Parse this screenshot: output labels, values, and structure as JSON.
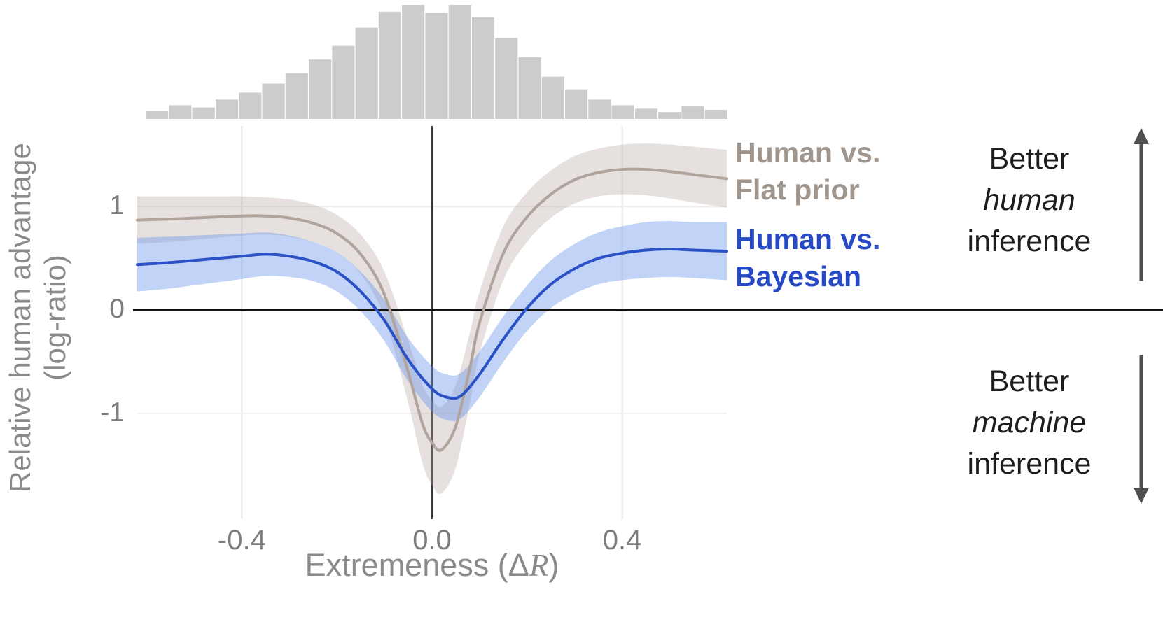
{
  "chart_data": {
    "type": "line",
    "xlabel_prefix": "Extremeness (Δ",
    "xlabel_var": "R",
    "xlabel_suffix": ")",
    "ylabel_line1": "Relative human advantage",
    "ylabel_line2": "(log-ratio)",
    "xlim": [
      -0.62,
      0.62
    ],
    "ylim": [
      -2.02,
      1.78
    ],
    "xticks": [
      {
        "value": -0.4,
        "label": "-0.4"
      },
      {
        "value": 0.0,
        "label": "0.0"
      },
      {
        "value": 0.4,
        "label": "0.4"
      }
    ],
    "yticks": [
      {
        "value": 1,
        "label": "1"
      },
      {
        "value": 0,
        "label": "0"
      },
      {
        "value": -1,
        "label": "-1"
      }
    ],
    "grid": true,
    "legend_position": "right",
    "zero_lines": {
      "horizontal_at_y": 0,
      "vertical_at_x": 0
    },
    "style": {
      "grid_v": "#e8e6e4",
      "grid_h": "#efeeec",
      "zero_h_line": "#111111",
      "zero_v_line": "#3a3a3a",
      "tick_text": "#7d7d7d",
      "axis_title_text": "#8a8a8a"
    },
    "series": [
      {
        "name": "Human vs. Flat prior",
        "line_color": "#b0a49c",
        "label_color": "#a0968e",
        "band_color": "rgba(178,162,151,0.32)",
        "x": [
          -0.62,
          -0.55,
          -0.5,
          -0.45,
          -0.4,
          -0.35,
          -0.3,
          -0.25,
          -0.2,
          -0.15,
          -0.1,
          -0.05,
          -0.02,
          0.0,
          0.02,
          0.05,
          0.08,
          0.1,
          0.15,
          0.2,
          0.25,
          0.3,
          0.35,
          0.4,
          0.45,
          0.5,
          0.55,
          0.62
        ],
        "mean": [
          0.87,
          0.88,
          0.89,
          0.9,
          0.91,
          0.91,
          0.89,
          0.84,
          0.74,
          0.54,
          0.15,
          -0.6,
          -1.1,
          -1.28,
          -1.35,
          -1.12,
          -0.55,
          -0.12,
          0.55,
          0.9,
          1.12,
          1.26,
          1.33,
          1.36,
          1.36,
          1.34,
          1.31,
          1.27
        ],
        "half": [
          0.23,
          0.22,
          0.21,
          0.2,
          0.19,
          0.18,
          0.18,
          0.18,
          0.18,
          0.19,
          0.22,
          0.3,
          0.38,
          0.41,
          0.42,
          0.4,
          0.34,
          0.3,
          0.26,
          0.24,
          0.23,
          0.23,
          0.23,
          0.24,
          0.25,
          0.26,
          0.27,
          0.28
        ]
      },
      {
        "name": "Human vs. Bayesian",
        "line_color": "#2b51c7",
        "label_color": "#2649c5",
        "band_color": "rgba(99,144,235,0.40)",
        "x": [
          -0.62,
          -0.55,
          -0.5,
          -0.45,
          -0.4,
          -0.35,
          -0.3,
          -0.25,
          -0.2,
          -0.15,
          -0.1,
          -0.05,
          0.0,
          0.03,
          0.06,
          0.1,
          0.15,
          0.2,
          0.25,
          0.3,
          0.35,
          0.4,
          0.45,
          0.5,
          0.55,
          0.62
        ],
        "mean": [
          0.44,
          0.46,
          0.48,
          0.5,
          0.52,
          0.54,
          0.52,
          0.47,
          0.37,
          0.18,
          -0.1,
          -0.48,
          -0.76,
          -0.84,
          -0.83,
          -0.62,
          -0.28,
          0.02,
          0.25,
          0.4,
          0.5,
          0.55,
          0.58,
          0.59,
          0.58,
          0.57
        ],
        "half": [
          0.26,
          0.25,
          0.24,
          0.23,
          0.22,
          0.21,
          0.2,
          0.19,
          0.19,
          0.19,
          0.2,
          0.21,
          0.22,
          0.22,
          0.22,
          0.22,
          0.22,
          0.22,
          0.23,
          0.24,
          0.25,
          0.26,
          0.27,
          0.27,
          0.27,
          0.28
        ]
      }
    ],
    "histogram": {
      "bin_start": -0.603,
      "bin_width": 0.049,
      "heights": [
        0.07,
        0.12,
        0.1,
        0.17,
        0.23,
        0.31,
        0.4,
        0.52,
        0.64,
        0.8,
        0.94,
        1.0,
        0.93,
        1.0,
        0.89,
        0.71,
        0.54,
        0.37,
        0.26,
        0.17,
        0.12,
        0.09,
        0.06,
        0.11,
        0.08
      ],
      "color": "#cccccc"
    }
  },
  "legend": {
    "flat": {
      "line1": "Human vs.",
      "line2": "Flat prior"
    },
    "bayes": {
      "line1": "Human vs.",
      "line2": "Bayesian"
    }
  },
  "annotations": {
    "better_human": {
      "line1": "Better",
      "line2": "human",
      "line3": "inference"
    },
    "better_machine": {
      "line1": "Better",
      "line2": "machine",
      "line3": "inference"
    },
    "text_color": "#1d1d1d",
    "arrow_color": "#4f4f4f"
  }
}
